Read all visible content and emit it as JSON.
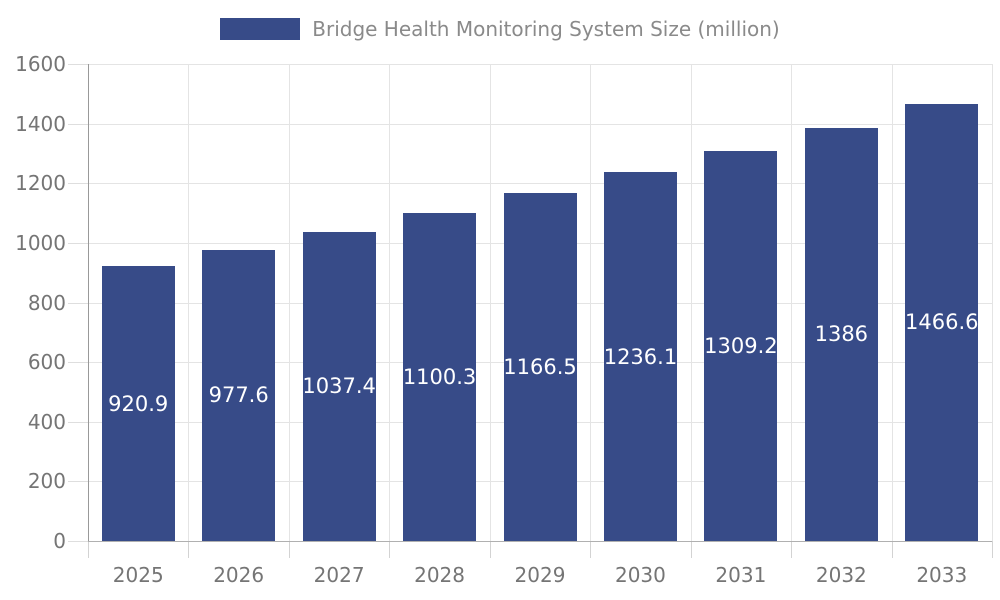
{
  "legend": {
    "label": "Bridge Health Monitoring System Size (million)"
  },
  "colors": {
    "bar": "#374b88",
    "grid": "#e4e4e4",
    "y_axis_line": "#999999",
    "x_axis_line": "#b0b0b0",
    "y_tick": "#dedede",
    "x_tick": "#d3d3d3",
    "tick_label_text": "#757575",
    "legend_text": "#8a8a8a",
    "value_label_text": "#ffffff",
    "background": "#ffffff"
  },
  "chart_data": {
    "type": "bar",
    "title": "",
    "xlabel": "",
    "ylabel": "",
    "categories": [
      "2025",
      "2026",
      "2027",
      "2028",
      "2029",
      "2030",
      "2031",
      "2032",
      "2033"
    ],
    "series": [
      {
        "name": "Bridge Health Monitoring System Size (million)",
        "values": [
          920.9,
          977.6,
          1037.4,
          1100.3,
          1166.5,
          1236.1,
          1309.2,
          1386,
          1466.6
        ]
      }
    ],
    "value_labels": [
      "920.9",
      "977.6",
      "1037.4",
      "1100.3",
      "1166.5",
      "1236.1",
      "1309.2",
      "1386",
      "1466.6"
    ],
    "ylim": [
      0,
      1600
    ],
    "yticks": [
      0,
      200,
      400,
      600,
      800,
      1000,
      1200,
      1400,
      1600
    ],
    "grid": true,
    "legend_position": "top"
  }
}
